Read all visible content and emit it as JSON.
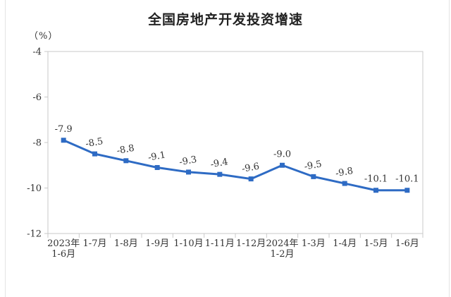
{
  "chart_data": {
    "type": "line",
    "title": "全国房地产开发投资增速",
    "unit_label": "（%）",
    "categories": [
      [
        "2023年",
        "1-6月"
      ],
      [
        "1-7月"
      ],
      [
        "1-8月"
      ],
      [
        "1-9月"
      ],
      [
        "1-10月"
      ],
      [
        "1-11月"
      ],
      [
        "1-12月"
      ],
      [
        "2024年",
        "1-2月"
      ],
      [
        "1-3月"
      ],
      [
        "1-4月"
      ],
      [
        "1-5月"
      ],
      [
        "1-6月"
      ]
    ],
    "values": [
      -7.9,
      -8.5,
      -8.8,
      -9.1,
      -9.3,
      -9.4,
      -9.6,
      -9.0,
      -9.5,
      -9.8,
      -10.1,
      -10.1
    ],
    "labels": [
      "-7.9",
      "-8.5",
      "-8.8",
      "-9.1",
      "-9.3",
      "-9.4",
      "-9.6",
      "-9.0",
      "-9.5",
      "-9.8",
      "-10.1",
      "-10.1"
    ],
    "ylim": [
      -12,
      -4
    ],
    "yticks": [
      -4,
      -6,
      -8,
      -10,
      -12
    ],
    "grid": false,
    "legend": "none",
    "tilted_labels": [
      1,
      2,
      3,
      4,
      5,
      6,
      8,
      9
    ],
    "line_color": "#2E6BC4",
    "label_color": "#333333",
    "axis_color": "#C9C9C9"
  }
}
